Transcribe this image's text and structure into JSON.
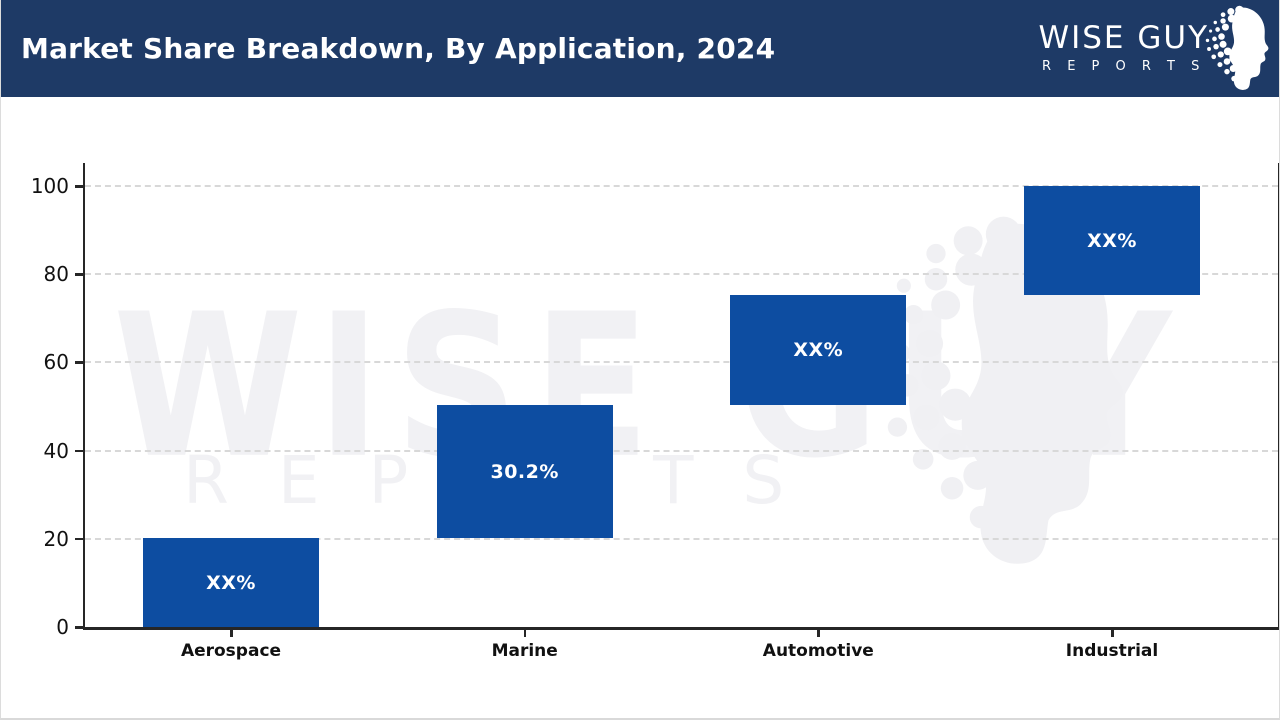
{
  "header": {
    "title": "Market Share Breakdown, By Application, 2024",
    "logo": {
      "line1": "WISE GUY",
      "line2": "R E P O R T S",
      "icon": "dotted-head-profile"
    }
  },
  "watermark": {
    "line1": "WISE GUY",
    "line2": "R E P O R T S",
    "icon": "dotted-head-profile"
  },
  "colors": {
    "header_bg": "#1e3a66",
    "bar_fill": "#0d4da1",
    "bar_label_text": "#ffffff",
    "axis": "#262626",
    "tick_text": "#111111",
    "gridline": "#d8d8d8",
    "watermark": "#f1f1f4"
  },
  "chart_data": {
    "type": "bar",
    "subtype": "floating-segment-waterfall",
    "title": "Market Share Breakdown, By Application, 2024",
    "categories": [
      "Aerospace",
      "Marine",
      "Automotive",
      "Industrial"
    ],
    "segments": [
      {
        "category": "Aerospace",
        "start": 0,
        "end": 20.1,
        "label": "XX%"
      },
      {
        "category": "Marine",
        "start": 20.1,
        "end": 50.3,
        "label": "30.2%"
      },
      {
        "category": "Automotive",
        "start": 50.3,
        "end": 75.2,
        "label": "XX%"
      },
      {
        "category": "Industrial",
        "start": 75.2,
        "end": 100,
        "label": "XX%"
      }
    ],
    "revealed_value": 30.2,
    "yticks": [
      0,
      20,
      40,
      60,
      80,
      100
    ],
    "ylim": [
      0,
      105
    ],
    "xlabel": "",
    "ylabel": "",
    "grid": "horizontal-dashed",
    "legend": false
  }
}
